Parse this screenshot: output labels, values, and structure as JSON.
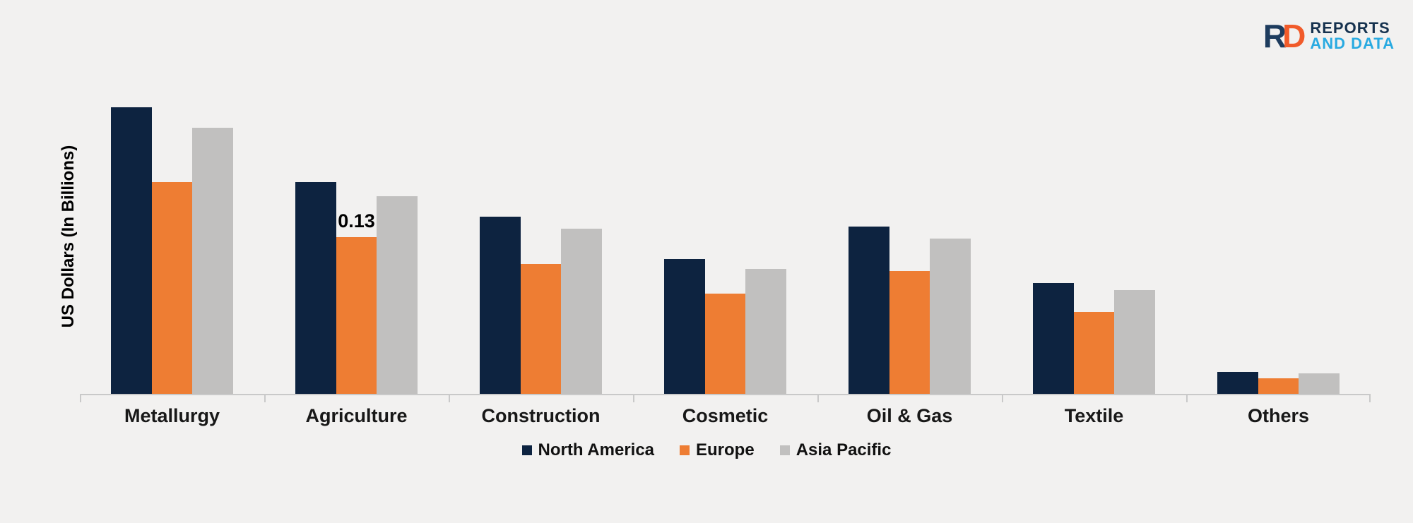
{
  "page": {
    "background": "#f2f1f0"
  },
  "logo": {
    "mark_r": "R",
    "mark_d": "D",
    "line1": "REPORTS",
    "line2": "AND DATA",
    "colors": {
      "mark_r": "#1e3c5e",
      "mark_d": "#f15b2a",
      "line1": "#16324f",
      "line2": "#29aae1"
    }
  },
  "chart_data": {
    "type": "bar",
    "title": "",
    "ylabel": "US Dollars (In Billions)",
    "xlabel": "",
    "categories": [
      "Metallurgy",
      "Agriculture",
      "Construction",
      "Cosmetic",
      "Oil & Gas",
      "Textile",
      "Others"
    ],
    "series": [
      {
        "name": "North America",
        "color": "#0d2340",
        "values": [
          0.238,
          0.176,
          0.147,
          0.112,
          0.139,
          0.092,
          0.018
        ]
      },
      {
        "name": "Europe",
        "color": "#ee7d33",
        "values": [
          0.176,
          0.13,
          0.108,
          0.083,
          0.102,
          0.068,
          0.013
        ]
      },
      {
        "name": "Asia Pacific",
        "color": "#c1c0bf",
        "values": [
          0.221,
          0.164,
          0.137,
          0.104,
          0.129,
          0.086,
          0.017
        ]
      }
    ],
    "value_labels": [
      {
        "category": "Agriculture",
        "series": "Europe",
        "text": "0.13"
      }
    ],
    "ylim": [
      0,
      0.26
    ],
    "grid": false,
    "y_axis_ticks_visible": false,
    "legend_position": "bottom",
    "axis_color": "#c9c9c9"
  }
}
